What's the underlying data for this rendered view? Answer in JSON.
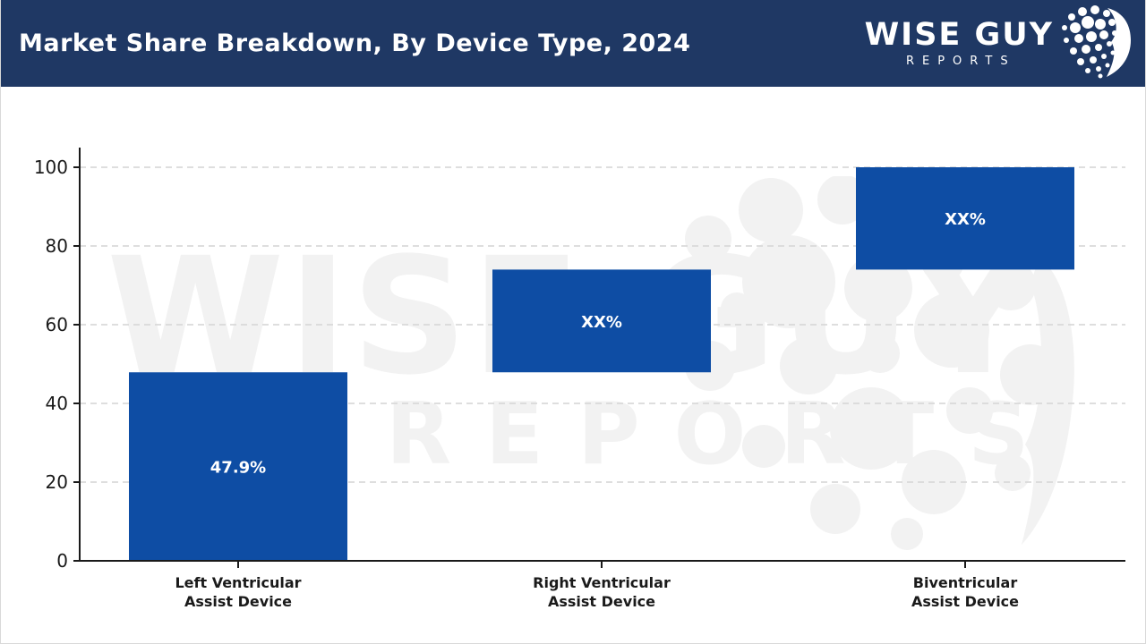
{
  "header": {
    "title": "Market Share Breakdown, By Device Type, 2024",
    "logo": {
      "wordmark": "WISE GUY",
      "subtext": "REPORTS"
    },
    "bg_color": "#1f3864"
  },
  "watermark": {
    "line1": "WISE GUY",
    "line2": "REPORTS"
  },
  "chart_data": {
    "type": "bar",
    "subtype": "floating-segment-waterfall",
    "title": "Market Share Breakdown, By Device Type, 2024",
    "categories": [
      {
        "line1": "Left Ventricular",
        "line2": "Assist Device"
      },
      {
        "line1": "Right Ventricular",
        "line2": "Assist Device"
      },
      {
        "line1": "Biventricular",
        "line2": "Assist Device"
      }
    ],
    "segments": [
      {
        "start": 0,
        "end": 47.9,
        "label": "47.9%"
      },
      {
        "start": 47.9,
        "end": 74,
        "label": "XX%"
      },
      {
        "start": 74,
        "end": 100,
        "label": "XX%"
      }
    ],
    "yticks": [
      0,
      20,
      40,
      60,
      80,
      100
    ],
    "ytick_labels": [
      "0",
      "20",
      "40",
      "60",
      "80",
      "100"
    ],
    "ylim": [
      0,
      105
    ],
    "xlabel": "",
    "ylabel": "",
    "grid": "horizontal-dashed",
    "legend": "none",
    "colors": {
      "bar": "#0e4da4",
      "bar_label": "#ffffff",
      "grid": "#d9d9d9",
      "axis": "#1a1a1a",
      "tick_label": "#1a1a1a",
      "header_bg": "#1f3864",
      "watermark": "#f2f2f2"
    }
  }
}
